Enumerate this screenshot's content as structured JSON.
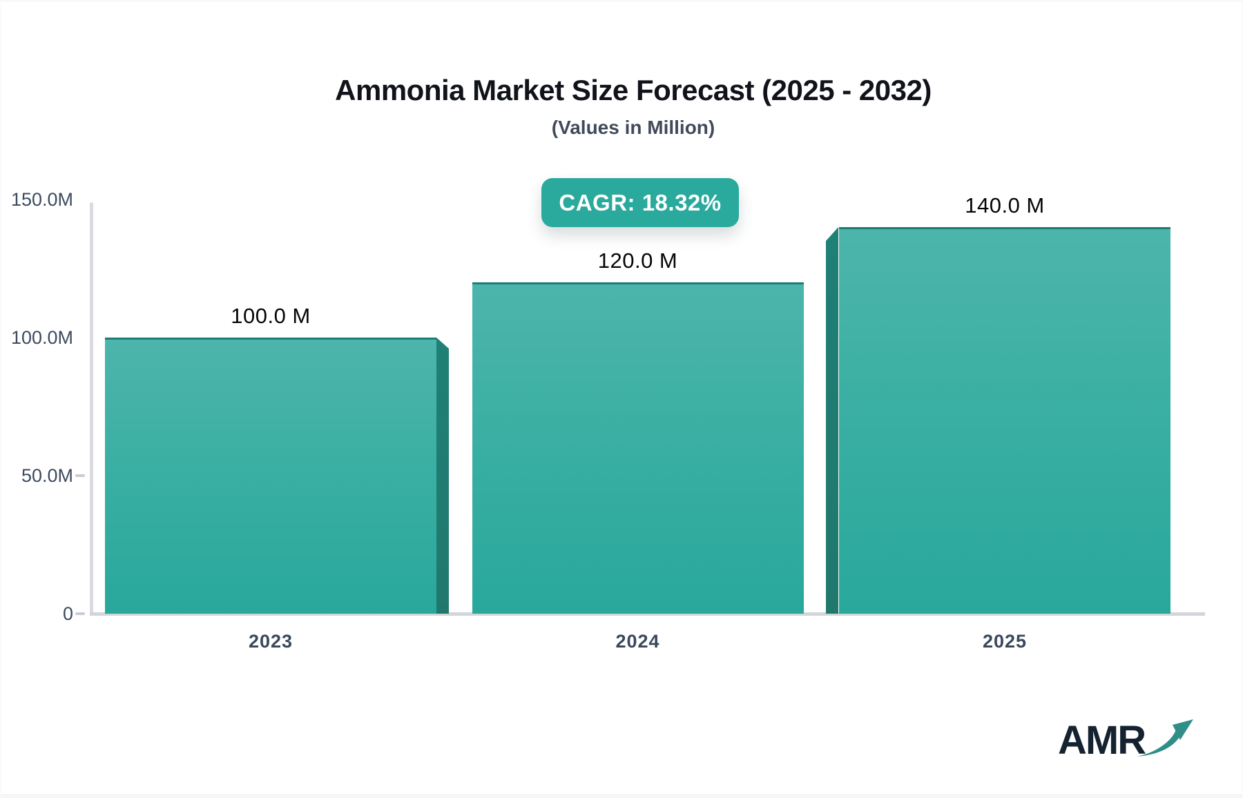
{
  "chart_data": {
    "type": "bar",
    "title": "Ammonia Market Size Forecast (2025 - 2032)",
    "subtitle": "(Values in Million)",
    "annotation": "CAGR: 18.32%",
    "categories": [
      "2023",
      "2024",
      "2025"
    ],
    "values": [
      100,
      120,
      140
    ],
    "bar_labels": [
      "100.0 M",
      "120.0 M",
      "140.0 M"
    ],
    "unit": "Million",
    "xlabel": "",
    "ylabel": "",
    "ylim": [
      0,
      150
    ],
    "grid": false,
    "legend": false,
    "yticks": [
      {
        "label": "150.0M",
        "value": 150,
        "dash": false
      },
      {
        "label": "100.0M",
        "value": 100,
        "dash": false
      },
      {
        "label": "50.0M",
        "value": 50,
        "dash": true
      },
      {
        "label": "0",
        "value": 0,
        "dash": true
      }
    ],
    "bar_3d_shade_sides": [
      "right",
      "top",
      "left"
    ]
  },
  "branding": {
    "logo_text": "AMR",
    "logo_arrow_icon": "growth-arrow-icon"
  },
  "colors": {
    "badge_bg": "#2aa99d",
    "badge_text": "#ffffff",
    "bar_gradient_top": "#4db5ab",
    "bar_gradient_bottom": "#28a89b",
    "bar_edge_dark": "#1b7d73",
    "bar_side_dark": "#1f8076",
    "axis_line": "#d9dbe0",
    "baseline": "#d2d5da",
    "tick_text": "#3d4b5f",
    "title_text": "#101319",
    "subtitle_text": "#404a5a",
    "value_label_text": "#050505",
    "logo_navy": "#152330",
    "logo_arrow_teal": "#2f8f88"
  }
}
